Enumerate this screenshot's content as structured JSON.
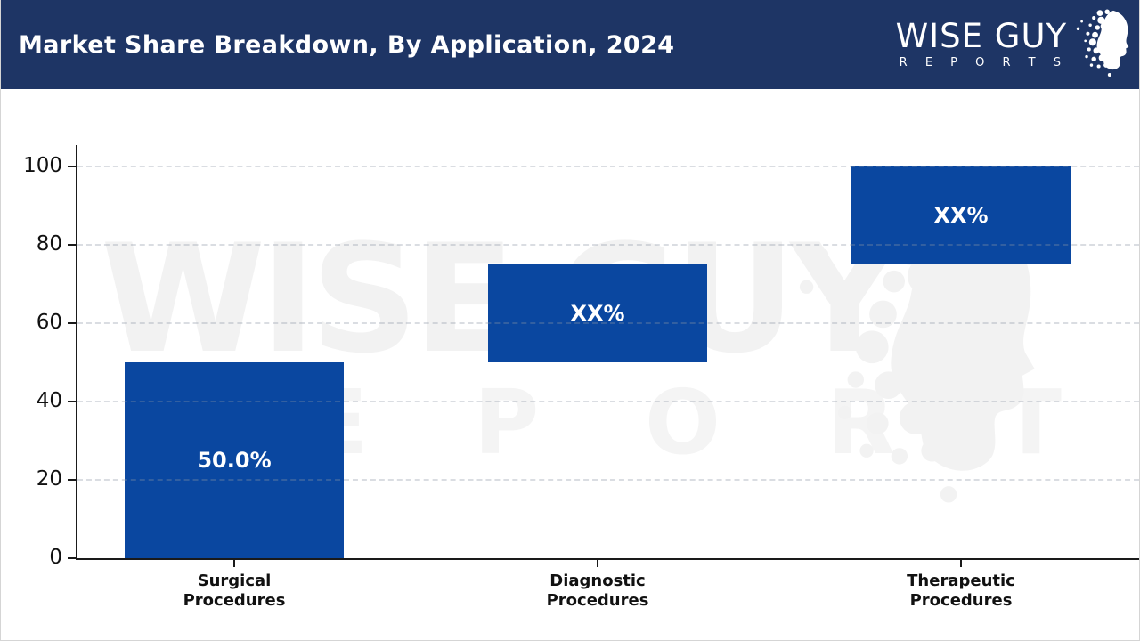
{
  "header": {
    "title": "Market Share Breakdown, By Application, 2024",
    "brand": {
      "name": "WISE GUY",
      "sub": "R E P O R T S",
      "icon": "dotted-head-profile-icon"
    }
  },
  "watermark": {
    "line1": "WISE GUY",
    "line2": "R E P O R T S",
    "icon": "dotted-head-profile-icon"
  },
  "colors": {
    "header_bg": "#1e3565",
    "bar": "#0a47a0",
    "bar_label": "#ffffff",
    "axis": "#1a1a1a",
    "grid": "rgba(140,150,165,0.32)",
    "panel_border": "#d5d5d5",
    "watermark": "#f2f2f2",
    "title_text": "#ffffff"
  },
  "chart_data": {
    "type": "bar",
    "variant": "floating-range-waterfall",
    "title": "Market Share Breakdown, By Application, 2024",
    "categories": [
      "Surgical Procedures",
      "Diagnostic Procedures",
      "Therapeutic Procedures"
    ],
    "bars": [
      {
        "category": "Surgical Procedures",
        "start": 0,
        "end": 50,
        "label": "50.0%"
      },
      {
        "category": "Diagnostic Procedures",
        "start": 50,
        "end": 75,
        "label": "XX%"
      },
      {
        "category": "Therapeutic Procedures",
        "start": 75,
        "end": 100,
        "label": "XX%"
      }
    ],
    "ylim": [
      0,
      100
    ],
    "yticks": [
      0,
      20,
      40,
      60,
      80,
      100
    ],
    "xlabel": "",
    "ylabel": "",
    "grid": "horizontal-dashed-over-bars",
    "legend": "none"
  }
}
